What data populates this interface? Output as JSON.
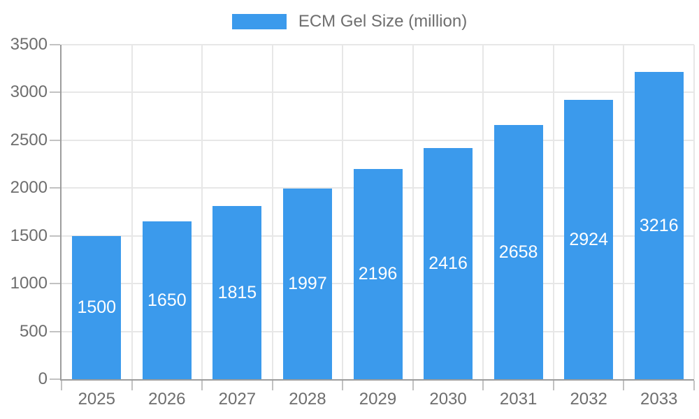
{
  "chart_data": {
    "type": "bar",
    "title": "",
    "legend": [
      "ECM Gel Size (million)"
    ],
    "legend_position": "top-center",
    "categories": [
      "2025",
      "2026",
      "2027",
      "2028",
      "2029",
      "2030",
      "2031",
      "2032",
      "2033"
    ],
    "series": [
      {
        "name": "ECM Gel Size (million)",
        "values": [
          1500,
          1650,
          1815,
          1997,
          2196,
          2416,
          2658,
          2924,
          3216
        ]
      }
    ],
    "xlabel": "",
    "ylabel": "",
    "ylim": [
      0,
      3500
    ],
    "ytick_step": 500,
    "grid": true,
    "value_labels": "inside-center",
    "colors": {
      "bar": "#3B9AEC",
      "value_label": "#FFFFFF",
      "axis_text": "#6E6E6E",
      "gridline": "#E7E7E7",
      "axis_line": "#9D9D9D",
      "tick": "#C2C2C2",
      "background": "#FFFFFF"
    }
  }
}
